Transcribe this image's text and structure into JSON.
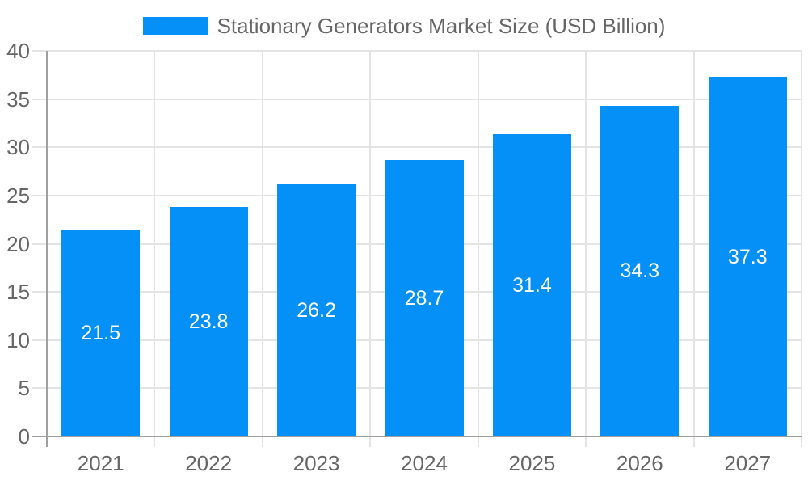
{
  "chart_data": {
    "type": "bar",
    "title": "Stationary Generators Market Size (USD Billion)",
    "legend": {
      "position": "top",
      "label": "Stationary Generators Market Size (USD Billion)"
    },
    "categories": [
      "2021",
      "2022",
      "2023",
      "2024",
      "2025",
      "2026",
      "2027"
    ],
    "series": [
      {
        "name": "Stationary Generators Market Size (USD Billion)",
        "values": [
          21.5,
          23.8,
          26.2,
          28.7,
          31.4,
          34.3,
          37.3
        ]
      }
    ],
    "value_labels": [
      "21.5",
      "23.8",
      "26.2",
      "28.7",
      "31.4",
      "34.3",
      "37.3"
    ],
    "xlabel": "",
    "ylabel": "",
    "ylim": [
      0,
      40
    ],
    "yticks": [
      "0",
      "5",
      "10",
      "15",
      "20",
      "25",
      "30",
      "35",
      "40"
    ],
    "grid": true,
    "colors": {
      "bar": "#0590f8",
      "grid": "#e4e4e4",
      "axis": "#a0a0a0",
      "tick_label": "#666666",
      "value_label": "#ffffff",
      "background": "#ffffff"
    }
  }
}
